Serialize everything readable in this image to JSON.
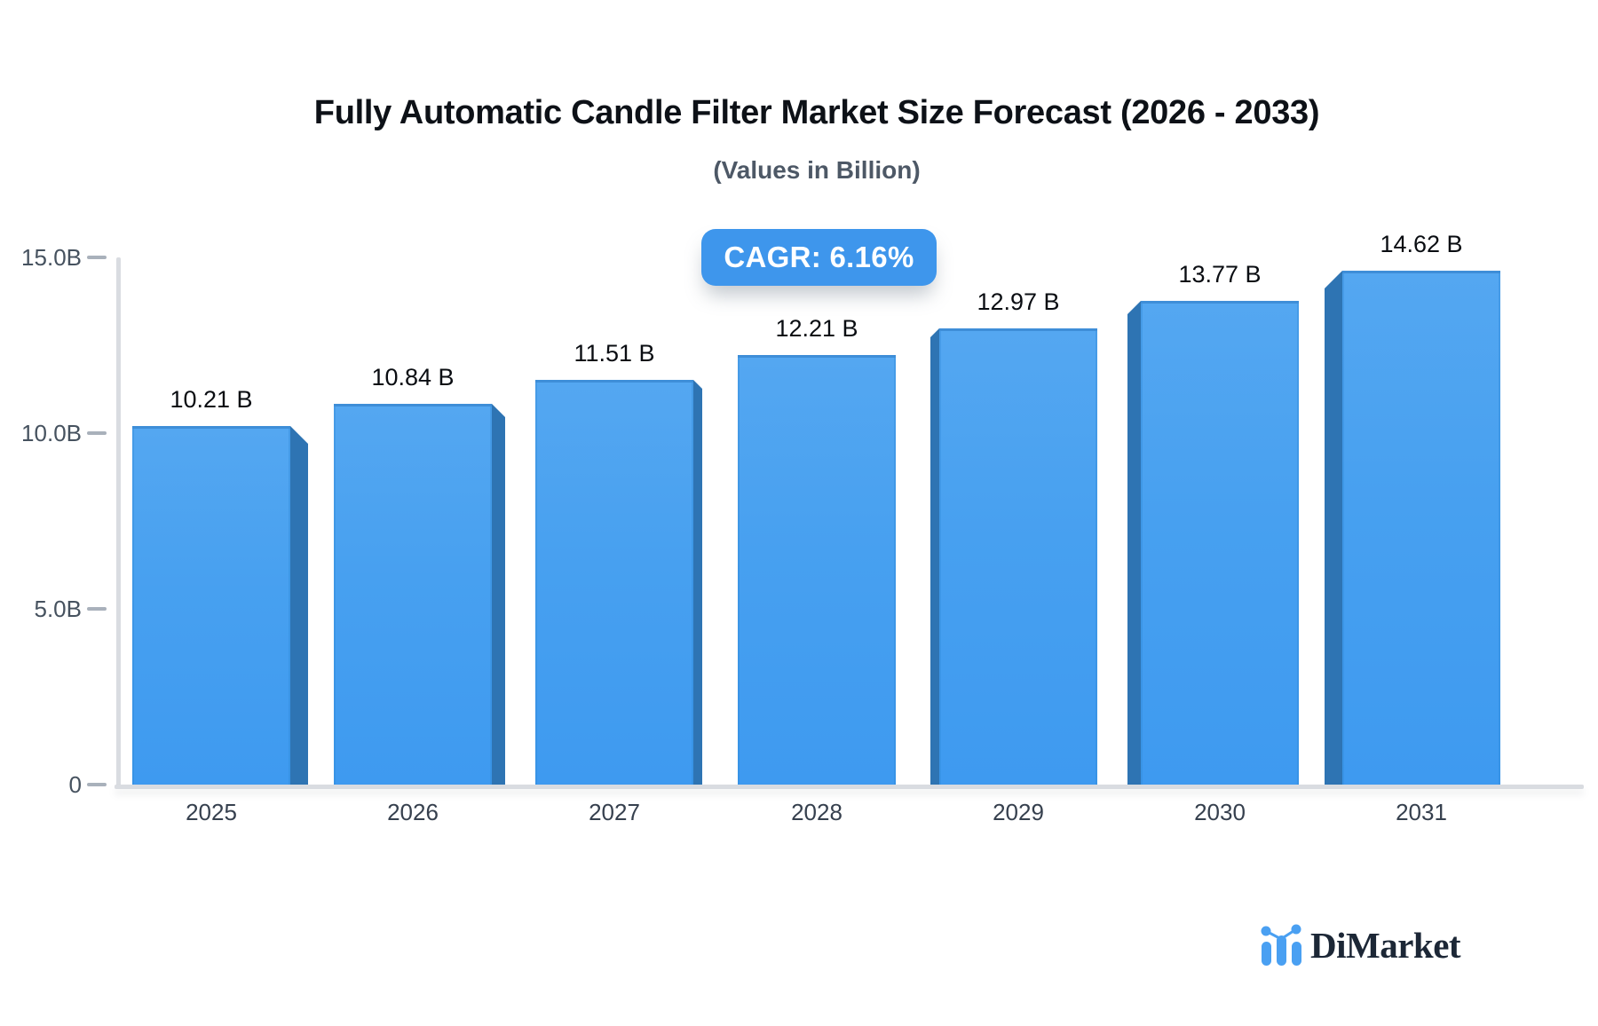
{
  "header": {
    "title": "Fully Automatic Candle Filter Market Size Forecast (2026 - 2033)",
    "subtitle": "(Values in Billion)",
    "cagr_badge": "CAGR: 6.16%"
  },
  "chart_data": {
    "type": "bar",
    "title": "Fully Automatic Candle Filter Market Size Forecast (2026 - 2033)",
    "subtitle": "(Values in Billion)",
    "annotation": "CAGR: 6.16%",
    "categories": [
      "2025",
      "2026",
      "2027",
      "2028",
      "2029",
      "2030",
      "2031"
    ],
    "values": [
      10.21,
      10.84,
      11.51,
      12.21,
      12.97,
      13.77,
      14.62
    ],
    "bar_labels": [
      "10.21 B",
      "10.84 B",
      "11.51 B",
      "12.21 B",
      "12.97 B",
      "13.77 B",
      "14.62 B"
    ],
    "xlabel": "",
    "ylabel": "",
    "ylim": [
      0,
      15
    ],
    "y_ticks": [
      {
        "value": 0,
        "label": "0"
      },
      {
        "value": 5,
        "label": "5.0B"
      },
      {
        "value": 10,
        "label": "10.0B"
      },
      {
        "value": 15,
        "label": "15.0B"
      }
    ],
    "grid": "off",
    "legend": "none",
    "bar_style": {
      "face_top_color": "#54a7f1",
      "face_bottom_color": "#3e9af0",
      "side_color": "#2e74b3",
      "outline_color": "#3e8ed8",
      "effect": "3d-extruded, side faces vanish toward center bar"
    }
  },
  "branding": {
    "logo_text": "DiMarket",
    "logo_icon": "bar-chart-with-dots-icon",
    "logo_icon_color": "#4aa0f2",
    "logo_text_color": "#1c2736"
  },
  "colors": {
    "background": "#ffffff",
    "badge_bg": "#3e96ec",
    "badge_text": "#ffffff",
    "axis_line": "#d9dce1",
    "tick_dash": "#a9b1bb",
    "axis_label": "#46525f",
    "category_label": "#36404e",
    "value_label": "#0a0d12",
    "title": "#0d1117",
    "subtitle": "#4d5866"
  }
}
